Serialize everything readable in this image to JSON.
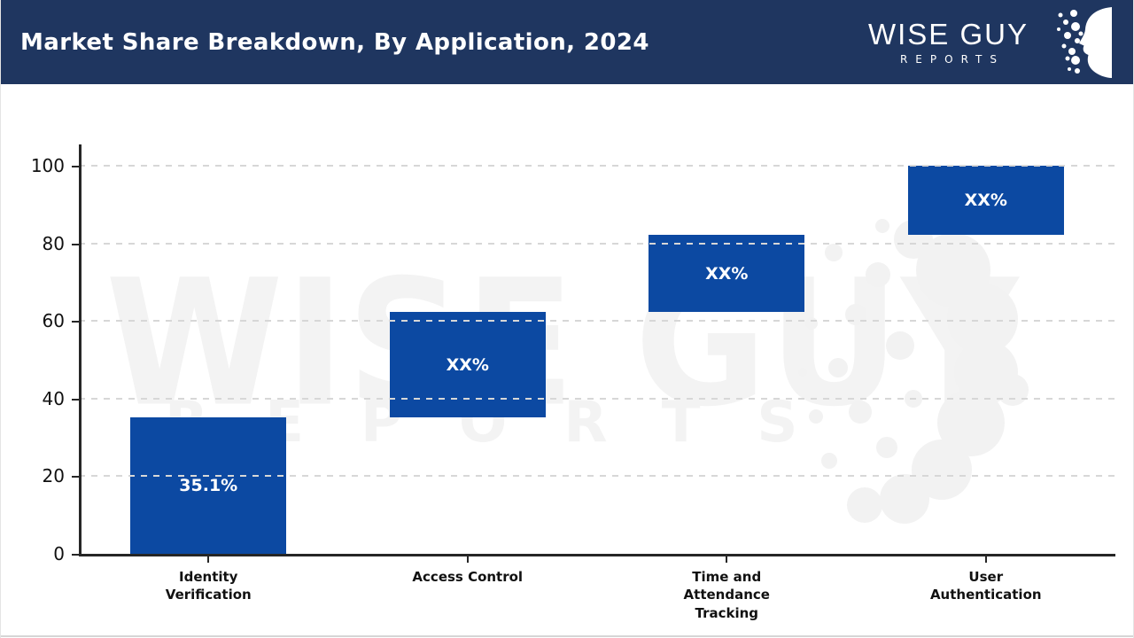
{
  "header": {
    "title": "Market Share Breakdown, By Application, 2024",
    "logo": {
      "name": "WISE GUY",
      "sub": "REPORTS"
    }
  },
  "watermark": {
    "text": "WISE GUY",
    "sub": "REPORTS"
  },
  "chart_data": {
    "type": "bar",
    "subtype": "waterfall",
    "title": "Market Share Breakdown, By Application, 2024",
    "categories": [
      "Identity Verification",
      "Access Control",
      "Time and Attendance Tracking",
      "User Authentication"
    ],
    "category_lines": [
      [
        "Identity",
        "Verification"
      ],
      [
        "Access Control"
      ],
      [
        "Time and",
        "Attendance",
        "Tracking"
      ],
      [
        "User",
        "Authentication"
      ]
    ],
    "segments": [
      {
        "start": 0,
        "end": 35.1,
        "label": "35.1%",
        "value": 35.1
      },
      {
        "start": 35.1,
        "end": 62.3,
        "label": "XX%",
        "value": 27.2
      },
      {
        "start": 62.3,
        "end": 82.1,
        "label": "XX%",
        "value": 19.8
      },
      {
        "start": 82.1,
        "end": 100,
        "label": "XX%",
        "value": 17.9
      }
    ],
    "y_ticks": [
      0,
      20,
      40,
      60,
      80,
      100
    ],
    "ylim": [
      0,
      105
    ],
    "grid": true,
    "grid_style": "dashed",
    "legend": false,
    "bar_color": "#0c49a2",
    "axis_color": "#262626",
    "label_color": "#ffffff"
  },
  "colors": {
    "header_bg": "#1f3660",
    "title_text": "#ffffff",
    "watermark": "#f3f3f3",
    "gridline": "#d7d7d7",
    "background": "#ffffff"
  }
}
